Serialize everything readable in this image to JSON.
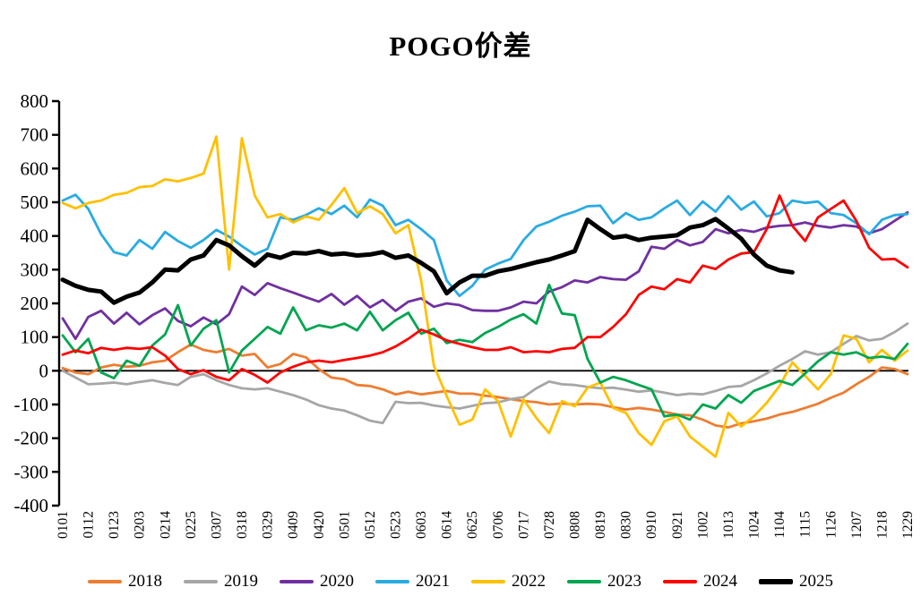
{
  "page": {
    "background": "#ffffff"
  },
  "chart_data": {
    "type": "line",
    "title": "POGO价差",
    "grid": false,
    "zero_line": true,
    "legend_position": "bottom",
    "x_axis": {
      "labels": [
        "0101",
        "0112",
        "0123",
        "0203",
        "0214",
        "0225",
        "0307",
        "0318",
        "0329",
        "0409",
        "0420",
        "0501",
        "0512",
        "0523",
        "0603",
        "0614",
        "0625",
        "0706",
        "0717",
        "0728",
        "0808",
        "0819",
        "0830",
        "0910",
        "0921",
        "1002",
        "1013",
        "1024",
        "1104",
        "1115",
        "1126",
        "1207",
        "1218",
        "1229"
      ],
      "label_interval_days": 11,
      "sample_interval_days": 5.5
    },
    "y_axis": {
      "min": -400,
      "max": 800,
      "step": 100,
      "ticks": [
        800,
        700,
        600,
        500,
        400,
        300,
        200,
        100,
        0,
        -100,
        -200,
        -300,
        -400
      ]
    },
    "series": [
      {
        "name": "2018",
        "color": "#ED7D31",
        "width": 2.8,
        "values": [
          8,
          -5,
          -10,
          10,
          18,
          12,
          15,
          25,
          30,
          55,
          78,
          62,
          55,
          65,
          45,
          50,
          10,
          20,
          50,
          40,
          5,
          -20,
          -25,
          -42,
          -45,
          -55,
          -70,
          -62,
          -70,
          -65,
          -60,
          -68,
          -68,
          -74,
          -78,
          -84,
          -90,
          -93,
          -100,
          -97,
          -100,
          -98,
          -100,
          -108,
          -115,
          -110,
          -115,
          -122,
          -130,
          -132,
          -145,
          -162,
          -168,
          -156,
          -150,
          -142,
          -130,
          -122,
          -110,
          -98,
          -80,
          -65,
          -40,
          -18,
          10,
          5,
          -10
        ]
      },
      {
        "name": "2019",
        "color": "#A6A6A6",
        "width": 2.8,
        "values": [
          0,
          -20,
          -40,
          -38,
          -35,
          -40,
          -33,
          -28,
          -36,
          -42,
          -18,
          -10,
          -28,
          -42,
          -52,
          -55,
          -52,
          -62,
          -72,
          -85,
          -102,
          -112,
          -118,
          -132,
          -148,
          -155,
          -92,
          -96,
          -95,
          -103,
          -108,
          -112,
          -104,
          -96,
          -94,
          -84,
          -78,
          -52,
          -32,
          -40,
          -42,
          -48,
          -52,
          -50,
          -56,
          -62,
          -58,
          -65,
          -72,
          -68,
          -70,
          -60,
          -48,
          -45,
          -28,
          -8,
          15,
          35,
          58,
          48,
          55,
          80,
          103,
          90,
          95,
          115,
          140
        ]
      },
      {
        "name": "2020",
        "color": "#7030A0",
        "width": 2.8,
        "values": [
          155,
          95,
          160,
          178,
          140,
          172,
          138,
          165,
          185,
          148,
          132,
          158,
          138,
          168,
          250,
          225,
          260,
          245,
          232,
          218,
          205,
          228,
          196,
          222,
          188,
          210,
          178,
          205,
          215,
          190,
          200,
          195,
          180,
          178,
          178,
          188,
          205,
          200,
          235,
          248,
          268,
          262,
          278,
          272,
          270,
          295,
          368,
          362,
          388,
          372,
          382,
          420,
          408,
          418,
          412,
          425,
          430,
          432,
          440,
          430,
          425,
          432,
          428,
          408,
          420,
          445,
          470
        ]
      },
      {
        "name": "2021",
        "color": "#29ABE2",
        "width": 2.8,
        "values": [
          505,
          522,
          480,
          405,
          352,
          342,
          388,
          362,
          412,
          385,
          365,
          388,
          418,
          398,
          370,
          345,
          362,
          455,
          448,
          462,
          482,
          465,
          490,
          455,
          508,
          490,
          432,
          448,
          420,
          388,
          268,
          222,
          252,
          300,
          318,
          332,
          388,
          428,
          442,
          460,
          472,
          488,
          490,
          438,
          468,
          448,
          455,
          482,
          505,
          462,
          502,
          472,
          518,
          478,
          502,
          458,
          468,
          505,
          498,
          502,
          468,
          462,
          438,
          405,
          448,
          462,
          465
        ]
      },
      {
        "name": "2022",
        "color": "#FFC000",
        "width": 2.8,
        "values": [
          498,
          482,
          498,
          505,
          522,
          528,
          545,
          548,
          568,
          562,
          572,
          585,
          695,
          300,
          690,
          520,
          455,
          465,
          440,
          458,
          448,
          492,
          542,
          468,
          488,
          465,
          408,
          432,
          268,
          15,
          -75,
          -160,
          -145,
          -55,
          -90,
          -195,
          -85,
          -140,
          -185,
          -90,
          -105,
          -50,
          -35,
          -110,
          -125,
          -185,
          -220,
          -150,
          -135,
          -195,
          -225,
          -255,
          -125,
          -165,
          -135,
          -95,
          -45,
          25,
          -15,
          -55,
          -10,
          105,
          95,
          25,
          62,
          30,
          60
        ]
      },
      {
        "name": "2023",
        "color": "#00A550",
        "width": 2.8,
        "values": [
          105,
          55,
          95,
          -5,
          -22,
          30,
          15,
          75,
          108,
          195,
          75,
          125,
          150,
          -5,
          60,
          95,
          130,
          110,
          188,
          120,
          135,
          128,
          140,
          120,
          175,
          120,
          150,
          172,
          110,
          125,
          82,
          92,
          85,
          112,
          130,
          152,
          168,
          140,
          255,
          170,
          165,
          35,
          -35,
          -18,
          -28,
          -42,
          -55,
          -135,
          -130,
          -145,
          -100,
          -112,
          -72,
          -95,
          -60,
          -45,
          -30,
          -42,
          -8,
          28,
          55,
          48,
          55,
          38,
          42,
          35,
          80
        ]
      },
      {
        "name": "2024",
        "color": "#FF0000",
        "width": 2.8,
        "values": [
          48,
          60,
          52,
          68,
          62,
          68,
          65,
          70,
          45,
          5,
          -10,
          2,
          -18,
          -28,
          5,
          -12,
          -35,
          -5,
          12,
          25,
          30,
          25,
          32,
          38,
          45,
          55,
          72,
          95,
          122,
          108,
          90,
          80,
          70,
          62,
          62,
          70,
          55,
          58,
          55,
          65,
          68,
          100,
          100,
          130,
          168,
          225,
          250,
          242,
          272,
          262,
          312,
          302,
          330,
          348,
          352,
          420,
          520,
          430,
          385,
          455,
          480,
          505,
          445,
          365,
          330,
          332,
          307
        ]
      },
      {
        "name": "2025",
        "color": "#000000",
        "width": 5,
        "values": [
          270,
          252,
          240,
          235,
          202,
          220,
          232,
          262,
          300,
          298,
          330,
          342,
          388,
          372,
          340,
          312,
          345,
          335,
          350,
          348,
          355,
          345,
          348,
          342,
          345,
          352,
          335,
          342,
          320,
          295,
          230,
          262,
          282,
          282,
          295,
          302,
          312,
          322,
          330,
          342,
          355,
          448,
          420,
          395,
          400,
          388,
          395,
          398,
          402,
          425,
          432,
          450,
          422,
          392,
          345,
          312,
          298,
          292
        ]
      }
    ]
  }
}
